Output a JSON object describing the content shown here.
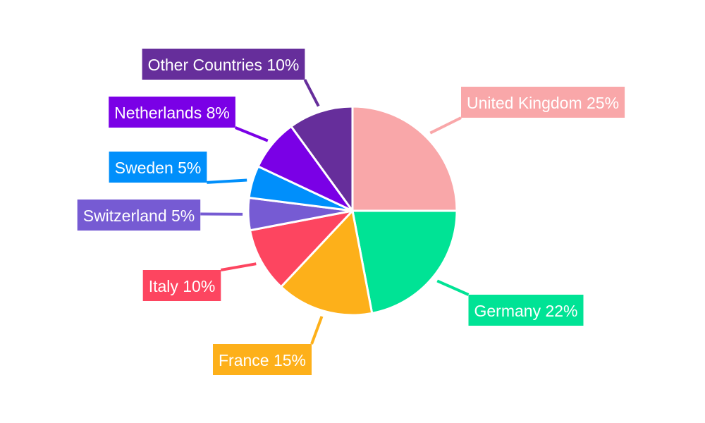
{
  "chart_data": {
    "type": "pie",
    "start_angle_deg": 0,
    "direction": "clockwise",
    "slices": [
      {
        "label": "United Kingdom 25%",
        "name": "United Kingdom",
        "value": 25,
        "color": "#F9A7A9"
      },
      {
        "label": "Germany 22%",
        "name": "Germany",
        "value": 22,
        "color": "#00E395"
      },
      {
        "label": "France 15%",
        "name": "France",
        "value": 15,
        "color": "#FDB01A"
      },
      {
        "label": "Italy 10%",
        "name": "Italy",
        "value": 10,
        "color": "#FD4560"
      },
      {
        "label": "Switzerland 5%",
        "name": "Switzerland",
        "value": 5,
        "color": "#765BD3"
      },
      {
        "label": "Sweden 5%",
        "name": "Sweden",
        "value": 5,
        "color": "#008FFB"
      },
      {
        "label": "Netherlands 8%",
        "name": "Netherlands",
        "value": 8,
        "color": "#7A00E6"
      },
      {
        "label": "Other Countries 10%",
        "name": "Other Countries",
        "value": 10,
        "color": "#662E9B"
      }
    ]
  }
}
